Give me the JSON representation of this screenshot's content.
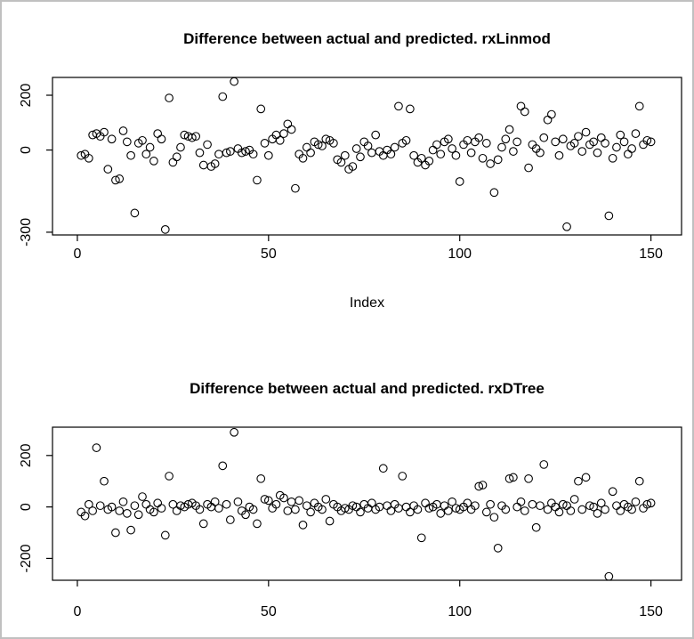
{
  "window": {
    "background": "#ffffff",
    "border_color": "#c0c0c0",
    "marker_color": "#000000",
    "axis_color": "#000000"
  },
  "chart_data": [
    {
      "type": "scatter",
      "title": "Difference between actual and predicted. rxLinmod",
      "xlabel": "Index",
      "ylabel": "",
      "x_description": "Index 1..150 (x = point order)",
      "xlim": [
        -6.5,
        158
      ],
      "ylim": [
        -310,
        265
      ],
      "xticks": [
        0,
        50,
        100,
        150
      ],
      "yticks": [
        200,
        0,
        -300
      ],
      "grid": false,
      "legend": "none",
      "marker": "open-circle",
      "y": [
        -20,
        -15,
        -30,
        55,
        60,
        50,
        65,
        -70,
        40,
        -110,
        -105,
        70,
        30,
        -20,
        -230,
        25,
        35,
        -15,
        10,
        -40,
        60,
        40,
        -290,
        190,
        -45,
        -25,
        10,
        55,
        50,
        45,
        50,
        -10,
        -55,
        20,
        -60,
        -50,
        -15,
        195,
        -10,
        -5,
        250,
        5,
        -10,
        -5,
        0,
        -15,
        -110,
        150,
        25,
        -20,
        40,
        55,
        35,
        60,
        95,
        75,
        -140,
        -15,
        -30,
        10,
        -10,
        30,
        20,
        15,
        40,
        35,
        25,
        -35,
        -45,
        -20,
        -70,
        -60,
        5,
        -25,
        30,
        15,
        -10,
        55,
        -5,
        -20,
        0,
        -15,
        10,
        160,
        25,
        35,
        150,
        -20,
        -45,
        -30,
        -55,
        -40,
        0,
        20,
        -15,
        30,
        40,
        5,
        -20,
        -115,
        20,
        35,
        -10,
        30,
        45,
        -30,
        25,
        -50,
        -155,
        -35,
        10,
        40,
        75,
        -5,
        30,
        160,
        140,
        -65,
        20,
        5,
        -10,
        45,
        110,
        130,
        30,
        -20,
        40,
        -280,
        15,
        25,
        50,
        -5,
        65,
        20,
        30,
        -10,
        45,
        25,
        -240,
        -30,
        10,
        55,
        30,
        -15,
        5,
        60,
        160,
        20,
        35,
        30
      ]
    },
    {
      "type": "scatter",
      "title": "Difference between actual and predicted. rxDTree",
      "xlabel": "",
      "ylabel": "",
      "x_description": "Index 1..150 (x = point order)",
      "xlim": [
        -6.5,
        158
      ],
      "ylim": [
        -285,
        310
      ],
      "xticks": [
        0,
        50,
        100,
        150
      ],
      "yticks": [
        200,
        0,
        -200
      ],
      "grid": false,
      "legend": "none",
      "marker": "open-circle",
      "y": [
        -20,
        -35,
        10,
        -15,
        230,
        5,
        100,
        -10,
        0,
        -100,
        -15,
        20,
        -25,
        -90,
        5,
        -30,
        40,
        10,
        -10,
        -20,
        15,
        -5,
        -110,
        120,
        10,
        -15,
        5,
        0,
        10,
        15,
        5,
        -10,
        -65,
        10,
        0,
        20,
        -5,
        160,
        10,
        -50,
        290,
        20,
        -15,
        -30,
        0,
        -10,
        -65,
        110,
        30,
        25,
        -5,
        10,
        45,
        35,
        -15,
        20,
        -10,
        25,
        -70,
        5,
        -20,
        15,
        0,
        -10,
        30,
        -55,
        10,
        0,
        -15,
        -5,
        -10,
        5,
        0,
        -20,
        10,
        -5,
        15,
        -10,
        0,
        150,
        5,
        -15,
        10,
        -5,
        120,
        0,
        -20,
        5,
        -10,
        -120,
        15,
        -5,
        0,
        10,
        -25,
        5,
        -15,
        20,
        -5,
        -10,
        0,
        15,
        -10,
        5,
        80,
        85,
        -20,
        10,
        -40,
        -160,
        5,
        -10,
        110,
        115,
        0,
        20,
        -15,
        110,
        10,
        -80,
        5,
        165,
        -10,
        15,
        0,
        -20,
        10,
        5,
        -15,
        30,
        100,
        -10,
        115,
        5,
        0,
        -25,
        15,
        -10,
        -270,
        60,
        5,
        -15,
        10,
        0,
        -10,
        20,
        100,
        -5,
        10,
        15
      ]
    }
  ]
}
